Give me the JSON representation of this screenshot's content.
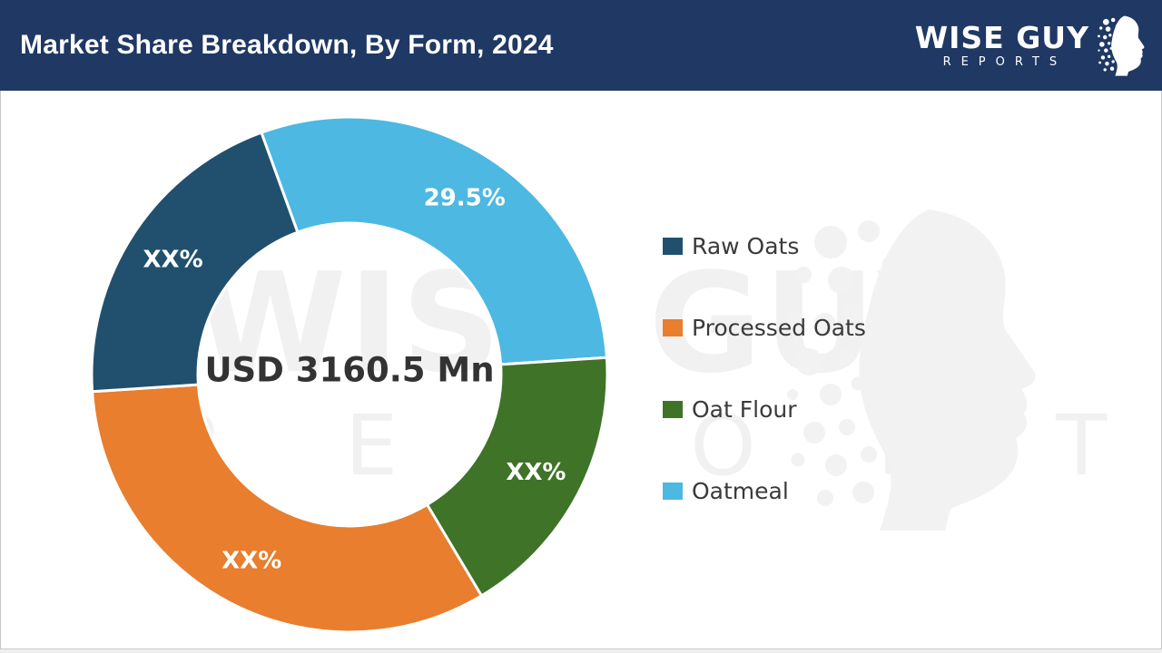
{
  "header": {
    "title": "Market Share Breakdown, By Form, 2024",
    "background": "#1F3864"
  },
  "logo": {
    "line1": "WISE GUY",
    "line2": "REPORTS",
    "face_icon": "dotted-head-profile"
  },
  "watermark": {
    "line1": "WISE GUY",
    "line2": "R E P O R T S",
    "color": "#F1F1F1"
  },
  "chart_data": {
    "type": "pie",
    "subtype": "donut",
    "title": "Market Share Breakdown, By Form, 2024",
    "center_label": "USD 3160.5 Mn",
    "start_angle_deg": -20,
    "direction": "clockwise",
    "legend_position": "right",
    "slices": [
      {
        "name": "Oatmeal",
        "value_pct": 29.5,
        "label": "29.5%",
        "color": "#4DB8E2"
      },
      {
        "name": "Oat Flour",
        "value_pct": 17.5,
        "label": "XX%",
        "color": "#3F7328"
      },
      {
        "name": "Processed Oats",
        "value_pct": 32.5,
        "label": "XX%",
        "color": "#E87E2E"
      },
      {
        "name": "Raw Oats",
        "value_pct": 20.5,
        "label": "XX%",
        "color": "#21506F"
      }
    ],
    "legend": [
      {
        "label": "Raw Oats",
        "color": "#21506F"
      },
      {
        "label": "Processed Oats",
        "color": "#E87E2E"
      },
      {
        "label": "Oat Flour",
        "color": "#3F7328"
      },
      {
        "label": "Oatmeal",
        "color": "#4DB8E2"
      }
    ]
  },
  "colors": {
    "header_bg": "#1F3864",
    "slice_separator": "#FFFFFF",
    "center_text": "#333333",
    "legend_text": "#3A3A3A",
    "border": "#C8C8C8"
  }
}
